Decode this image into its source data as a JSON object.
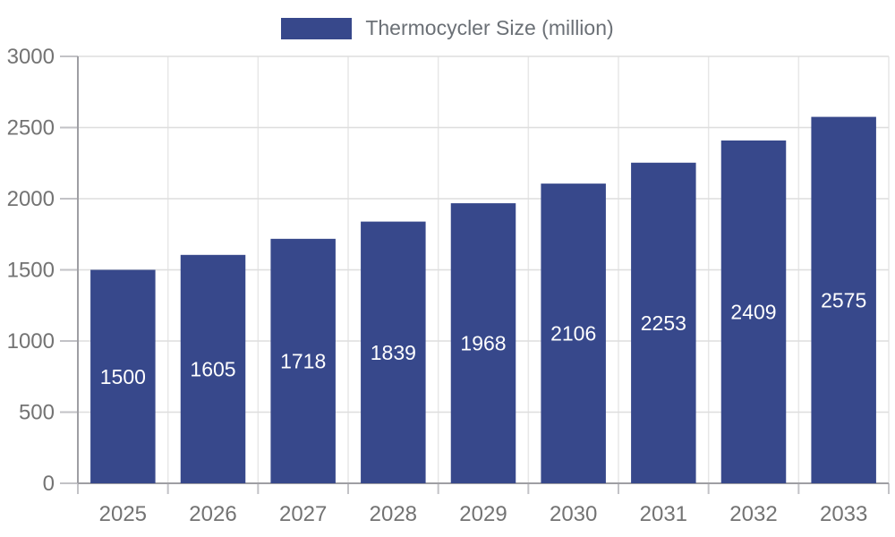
{
  "legend": {
    "label": "Thermocycler Size (million)"
  },
  "colors": {
    "bar": "#37488B",
    "bar_label": "#FFFFFF",
    "axis_line": "#9E9EA3",
    "tick": "#C2C2C6",
    "grid_h": "#DEDEDE",
    "grid_v": "#E7E7E7",
    "axis_label": "#737373",
    "legend_text": "#6B7076",
    "background": "#FFFFFF"
  },
  "chart_data": {
    "type": "bar",
    "title": "",
    "xlabel": "",
    "ylabel": "",
    "series_name": "Thermocycler Size (million)",
    "categories": [
      "2025",
      "2026",
      "2027",
      "2028",
      "2029",
      "2030",
      "2031",
      "2032",
      "2033"
    ],
    "values": [
      1500,
      1605,
      1718,
      1839,
      1968,
      2106,
      2253,
      2409,
      2575
    ],
    "ylim": [
      0,
      3000
    ],
    "yticks": [
      0,
      500,
      1000,
      1500,
      2000,
      2500,
      3000
    ],
    "grid": "both",
    "legend_position": "top-center",
    "bar_label_position": "inside-center"
  }
}
